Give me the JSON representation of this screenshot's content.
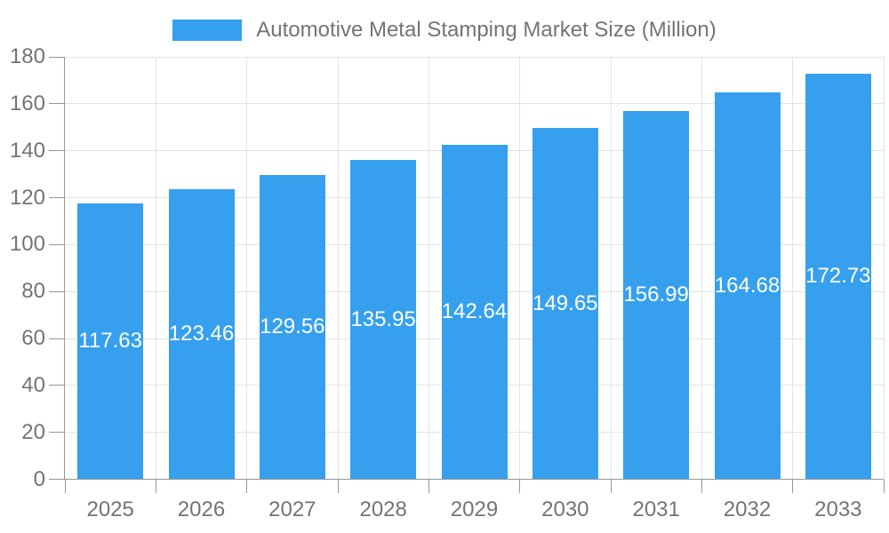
{
  "chart_data": {
    "type": "bar",
    "title": "Automotive Metal Stamping Market Size (Million)",
    "categories": [
      "2025",
      "2026",
      "2027",
      "2028",
      "2029",
      "2030",
      "2031",
      "2032",
      "2033"
    ],
    "values": [
      117.63,
      123.46,
      129.56,
      135.95,
      142.64,
      149.65,
      156.99,
      164.68,
      172.73
    ],
    "value_labels": [
      "117.63",
      "123.46",
      "129.56",
      "135.95",
      "142.64",
      "149.65",
      "156.99",
      "164.68",
      "172.73"
    ],
    "xlabel": "",
    "ylabel": "",
    "ylim": [
      0,
      180
    ],
    "ytick_step": 20,
    "ytick_labels": [
      "0",
      "20",
      "40",
      "60",
      "80",
      "100",
      "120",
      "140",
      "160",
      "180"
    ],
    "grid": true,
    "legend_position": "top",
    "colors": {
      "bar": "#36A0EE",
      "bar_label": "#FFFFFF",
      "axis_text": "#747474",
      "axis_line": "#979797",
      "grid_line": "#E3E3E3",
      "background": "#FFFFFF"
    }
  }
}
